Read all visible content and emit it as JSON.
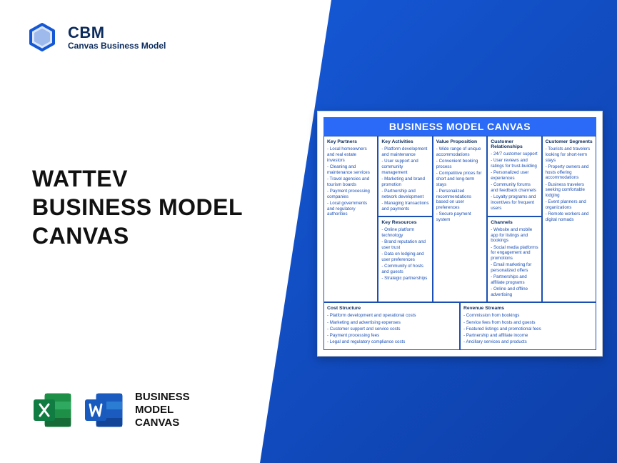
{
  "logo": {
    "line1": "CBM",
    "line2": "Canvas Business Model"
  },
  "title": {
    "line1": "WATTEV",
    "line2": "BUSINESS MODEL",
    "line3": "CANVAS"
  },
  "appLabel": {
    "line1": "BUSINESS",
    "line2": "MODEL",
    "line3": "CANVAS"
  },
  "canvas": {
    "header": "BUSINESS MODEL CANVAS",
    "cells": {
      "keyPartners": {
        "title": "Key Partners",
        "items": [
          "Local homeowners and real estate investors",
          "Cleaning and maintenance services",
          "Travel agencies and tourism boards",
          "Payment processing companies",
          "Local governments and regulatory authorities"
        ]
      },
      "keyActivities": {
        "title": "Key Activities",
        "items": [
          "Platform development and maintenance",
          "User support and community management",
          "Marketing and brand promotion",
          "Partnership and network development",
          "Managing transactions and payments"
        ]
      },
      "keyResources": {
        "title": "Key Resources",
        "items": [
          "Online platform technology",
          "Brand reputation and user trust",
          "Data on lodging and user preferences",
          "Community of hosts and guests",
          "Strategic partnerships"
        ]
      },
      "valueProp": {
        "title": "Value Proposition",
        "items": [
          "Wide range of unique accommodations",
          "Convenient booking process",
          "Competitive prices for short and long-term stays",
          "Personalized recommendations based on user preferences",
          "Secure payment system"
        ]
      },
      "custRel": {
        "title": "Customer Relationships",
        "items": [
          "24/7 customer support",
          "User reviews and ratings for trust-building",
          "Personalized user experiences",
          "Community forums and feedback channels",
          "Loyalty programs and incentives for frequent users"
        ]
      },
      "channels": {
        "title": "Channels",
        "items": [
          "Website and mobile app for listings and bookings",
          "Social media platforms for engagement and promotions",
          "Email marketing for personalized offers",
          "Partnerships and affiliate programs",
          "Online and offline advertising"
        ]
      },
      "custSeg": {
        "title": "Customer Segments",
        "items": [
          "Tourists and travelers looking for short-term stays",
          "Property owners and hosts offering accommodations",
          "Business travelers seeking comfortable lodging",
          "Event planners and organizations",
          "Remote workers and digital nomads"
        ]
      },
      "costStructure": {
        "title": "Cost Structure",
        "items": [
          "Platform development and operational costs",
          "Marketing and advertising expenses",
          "Customer support and service costs",
          "Payment processing fees",
          "Legal and regulatory compliance costs"
        ]
      },
      "revenue": {
        "title": "Revenue Streams",
        "items": [
          "Commission from bookings",
          "Service fees from hosts and guests",
          "Featured listings and promotional fees",
          "Partnership and affiliate income",
          "Ancillary services and products"
        ]
      }
    }
  },
  "colors": {
    "primary": "#1558d6",
    "dark": "#0b2b5c",
    "canvasBlue": "#2a6af6",
    "textBlue": "#1a4fb3"
  }
}
